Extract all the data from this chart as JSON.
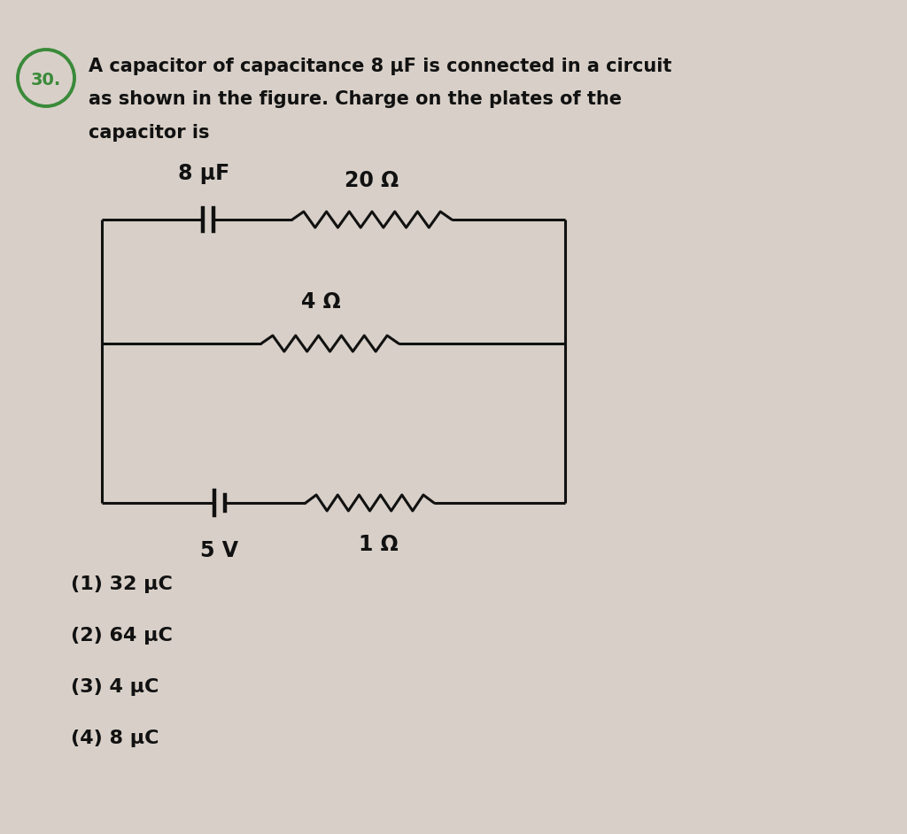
{
  "background_color": "#d8d0c8",
  "paper_color": "#e8e2da",
  "title_number_color": "#3a8a3a",
  "line_color": "#111111",
  "text_color": "#111111",
  "lw": 2.2,
  "fig_w": 10.24,
  "fig_h": 9.42,
  "labels": {
    "cap_label": "8 μF",
    "res20_label": "20 Ω",
    "res4_label": "4 Ω",
    "res1_label": "1 Ω",
    "volt_label": "5 V"
  },
  "choices": [
    "(1) 32 μC",
    "(2) 64 μC",
    "(3) 4 μC",
    "(4) 8 μC"
  ],
  "q_line1": "A capacitor of capacitance 8 μF is connected in a circuit",
  "q_line2": "as shown in the figure. Charge on the plates of the",
  "q_line3": "capacitor is"
}
